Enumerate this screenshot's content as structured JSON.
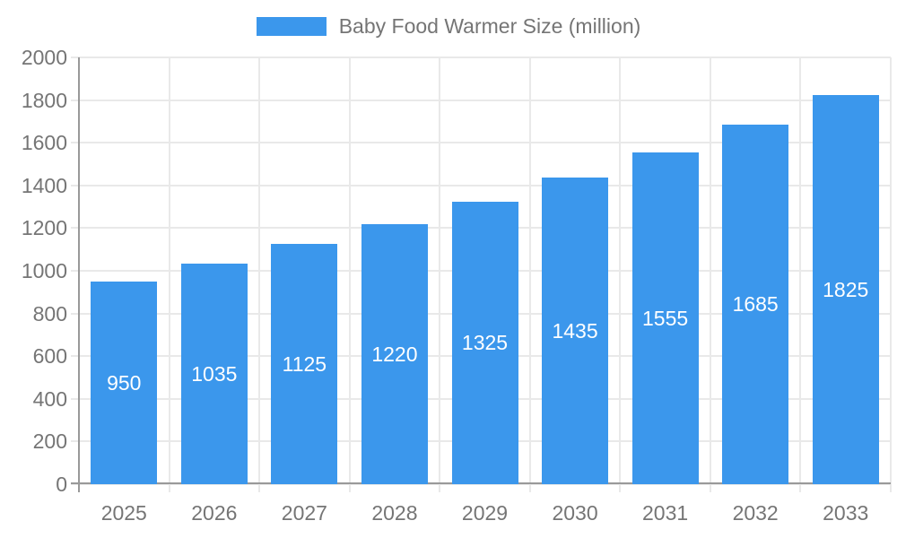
{
  "legend": {
    "label": "Baby Food Warmer Size (million)"
  },
  "colors": {
    "bar": "#3b97ec",
    "axis_line": "#999999",
    "grid_line": "#e9e9e9",
    "axis_text": "#757575",
    "bar_label_text": "#ffffff",
    "background": "#ffffff"
  },
  "chart_data": {
    "type": "bar",
    "title": "",
    "categories": [
      "2025",
      "2026",
      "2027",
      "2028",
      "2029",
      "2030",
      "2031",
      "2032",
      "2033"
    ],
    "series": [
      {
        "name": "Baby Food Warmer Size (million)",
        "color": "#3b97ec",
        "values": [
          950,
          1035,
          1125,
          1220,
          1325,
          1435,
          1555,
          1685,
          1825
        ]
      }
    ],
    "xlabel": "",
    "ylabel": "",
    "ylim": [
      0,
      2000
    ],
    "ytick_step": 200,
    "grid": true,
    "legend_position": "top",
    "value_labels": "inside-center"
  }
}
